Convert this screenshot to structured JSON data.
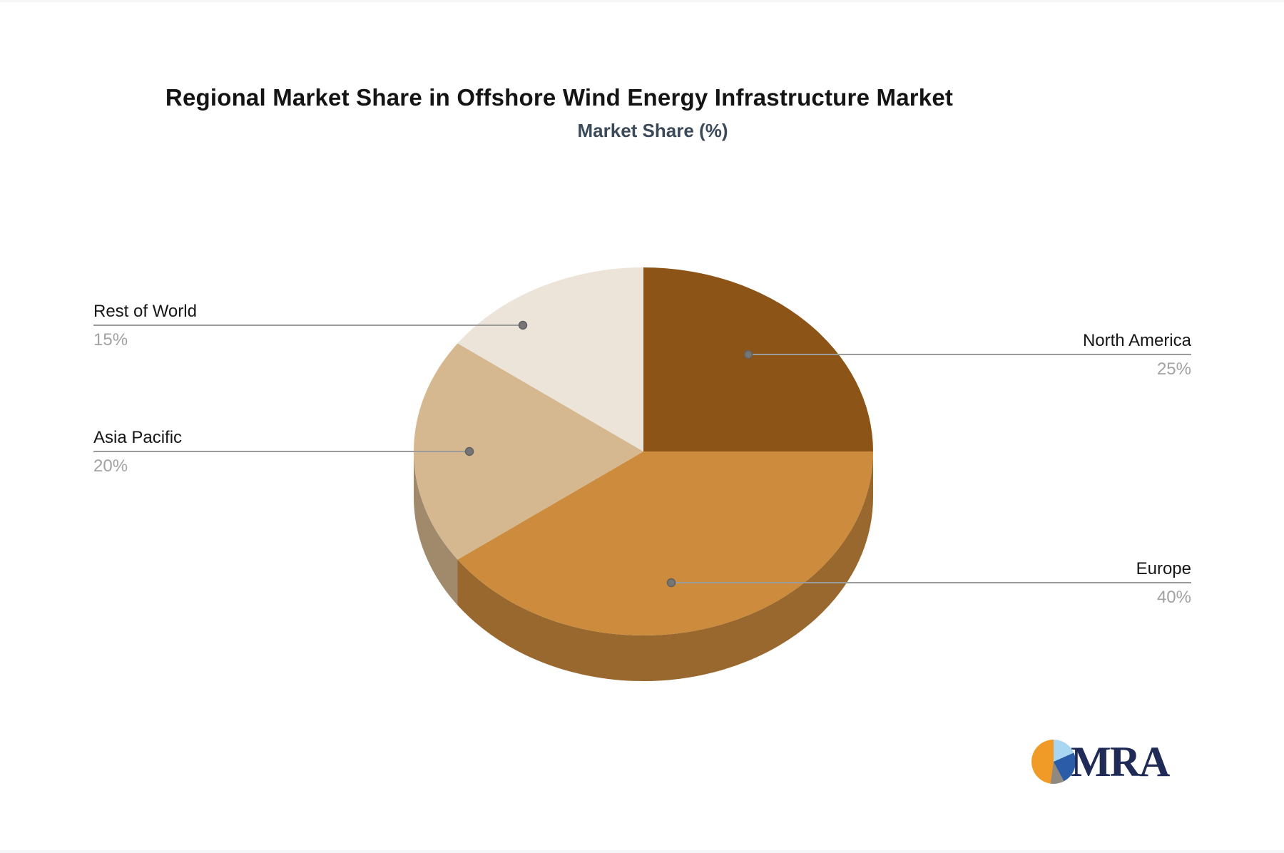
{
  "chart_data": {
    "type": "pie",
    "style": "3d",
    "title": "Regional Market Share in Offshore Wind Energy Infrastructure Market",
    "subtitle": "Market Share (%)",
    "value_suffix": "%",
    "legend": "none",
    "labels_position": "outside-callout",
    "slices": [
      {
        "label": "North America",
        "value": 25,
        "display_value": "25%",
        "color": "#8C5517",
        "callout_side": "right"
      },
      {
        "label": "Europe",
        "value": 40,
        "display_value": "40%",
        "color": "#CC8B3D",
        "callout_side": "right"
      },
      {
        "label": "Asia Pacific",
        "value": 20,
        "display_value": "20%",
        "color": "#D6B890",
        "callout_side": "left"
      },
      {
        "label": "Rest of World",
        "value": 15,
        "display_value": "15%",
        "color": "#EDE4D9",
        "callout_side": "left"
      }
    ]
  },
  "branding": {
    "logo_text": "MRA",
    "logo_text_color": "#1F2A56",
    "logo_icon_slices": [
      {
        "color": "#A9D7F2",
        "from_deg": 0,
        "to_deg": 66
      },
      {
        "color": "#2B5CA8",
        "from_deg": 66,
        "to_deg": 152
      },
      {
        "color": "#8F8982",
        "from_deg": 152,
        "to_deg": 188
      },
      {
        "color": "#F09A27",
        "from_deg": 188,
        "to_deg": 360
      }
    ]
  },
  "styles": {
    "title_color": "#141414",
    "subtitle_color": "#3B4A58",
    "label_name_color": "#161616",
    "label_value_color": "#A2A2A2",
    "callout_line_color": "#9B9B9B",
    "callout_dot_color": "#757575",
    "background": "#FFFFFF",
    "edge_strip_color": "#F5F6F7",
    "depth_shade_factor": 0.75
  }
}
